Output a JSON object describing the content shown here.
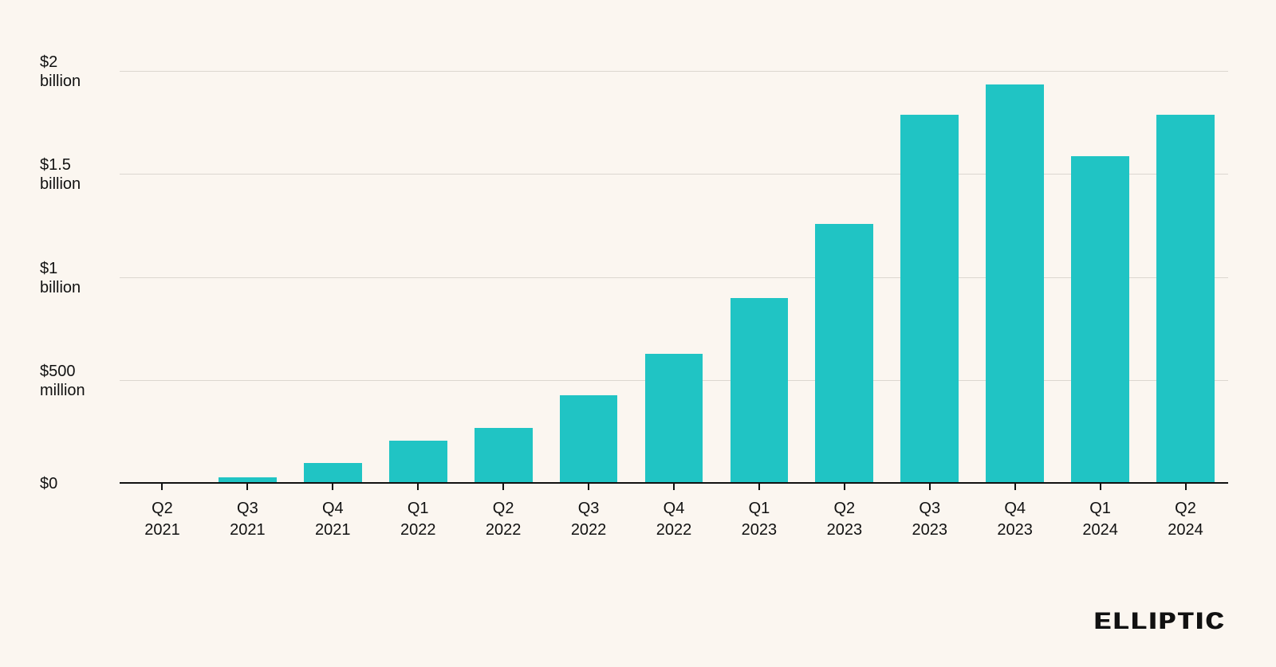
{
  "chart": {
    "type": "bar",
    "background_color": "#fbf6f0",
    "bar_color": "#20c4c4",
    "grid_color": "#dcd7d0",
    "axis_color": "#111111",
    "text_color": "#111111",
    "label_fontsize": 20,
    "ytick_fontsize": 20,
    "ymax": 2000,
    "yticks": [
      {
        "value": 0,
        "label": "$0"
      },
      {
        "value": 500,
        "label": "$500\nmillion"
      },
      {
        "value": 1000,
        "label": "$1\nbillion"
      },
      {
        "value": 1500,
        "label": "$1.5\nbillion"
      },
      {
        "value": 2000,
        "label": "$2\nbillion"
      }
    ],
    "series": [
      {
        "label": "Q2\n2021",
        "value": 3
      },
      {
        "label": "Q3\n2021",
        "value": 30
      },
      {
        "label": "Q4\n2021",
        "value": 100
      },
      {
        "label": "Q1\n2022",
        "value": 210
      },
      {
        "label": "Q2\n2022",
        "value": 270
      },
      {
        "label": "Q3\n2022",
        "value": 430
      },
      {
        "label": "Q4\n2022",
        "value": 630
      },
      {
        "label": "Q1\n2023",
        "value": 900
      },
      {
        "label": "Q2\n2023",
        "value": 1260
      },
      {
        "label": "Q3\n2023",
        "value": 1790
      },
      {
        "label": "Q4\n2023",
        "value": 1940
      },
      {
        "label": "Q1\n2024",
        "value": 1590
      },
      {
        "label": "Q2\n2024",
        "value": 1790
      }
    ]
  },
  "brand": {
    "label": "ELLIPTIC",
    "fontsize": 30,
    "color": "#111111"
  }
}
